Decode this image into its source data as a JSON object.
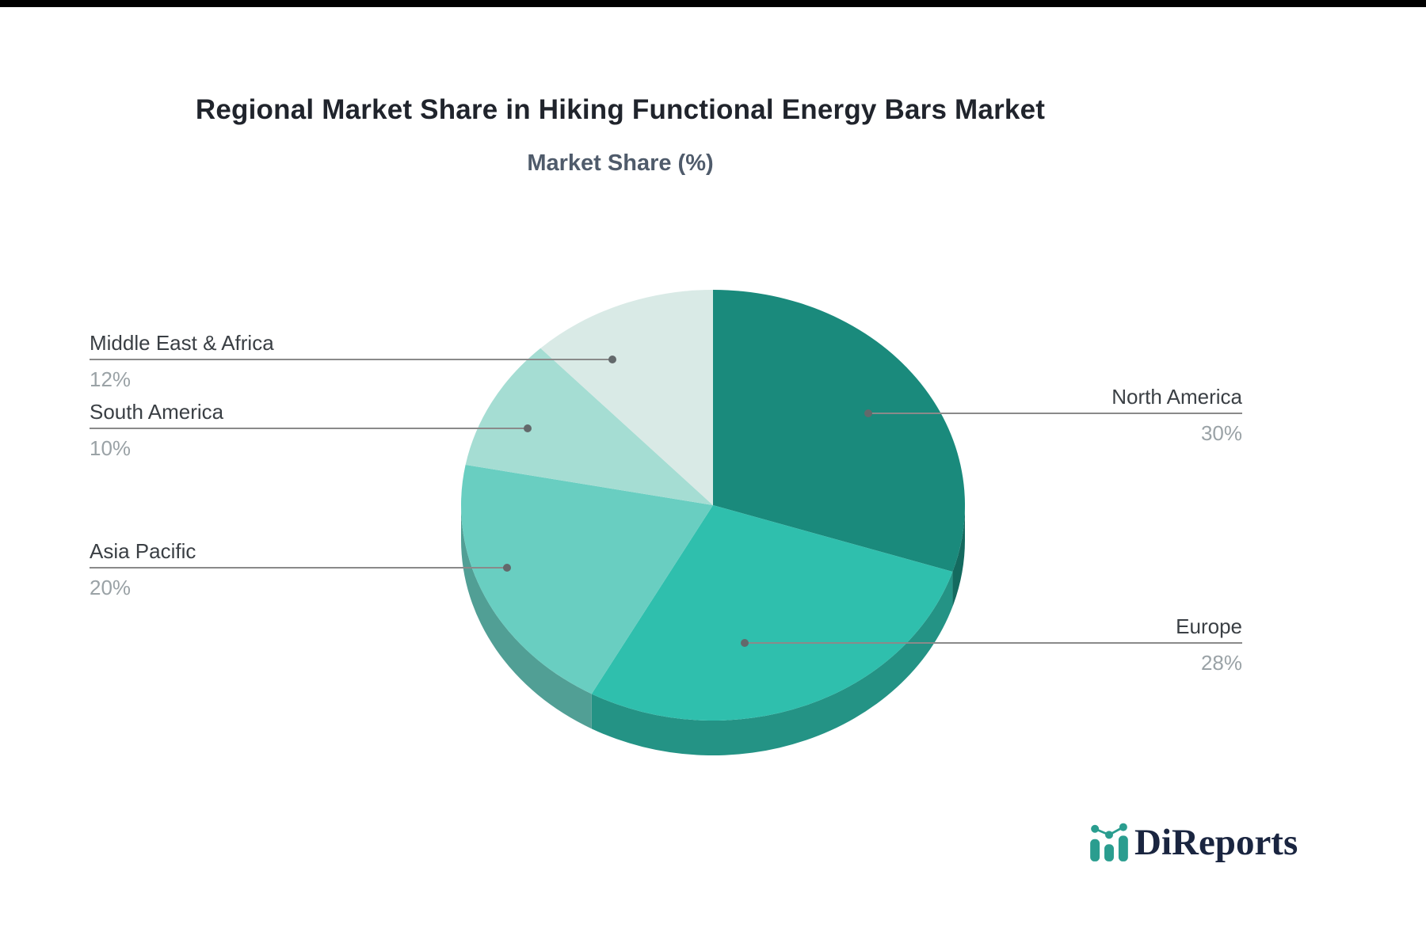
{
  "page": {
    "background": "#ffffff",
    "top_bar_color": "#000000"
  },
  "chart_data": {
    "type": "pie",
    "title": "Regional Market Share in Hiking Functional Energy Bars Market",
    "subtitle": "Market Share (%)",
    "effect_3d": true,
    "start_angle": "12-o-clock, clockwise",
    "legend_position": "none",
    "slices": [
      {
        "label": "North America",
        "value": 30,
        "value_label": "30%",
        "color": "#1A8A7C"
      },
      {
        "label": "Europe",
        "value": 28,
        "value_label": "28%",
        "color": "#2FBFAD"
      },
      {
        "label": "Asia Pacific",
        "value": 20,
        "value_label": "20%",
        "color": "#69CEC1"
      },
      {
        "label": "South America",
        "value": 10,
        "value_label": "10%",
        "color": "#A5DDD3"
      },
      {
        "label": "Middle East & Africa",
        "value": 12,
        "value_label": "12%",
        "color": "#D9EAE6"
      }
    ],
    "label_style": {
      "name_color": "#3A3F44",
      "value_color": "#9AA2A6",
      "line_color": "#8A8A8A",
      "dot_color": "#63696B"
    }
  },
  "branding": {
    "logo_text": "DiReports",
    "logo_text_color": "#1A2540",
    "logo_icon": "bar-line-chart-icon",
    "logo_icon_color": "#2A9D8F"
  }
}
